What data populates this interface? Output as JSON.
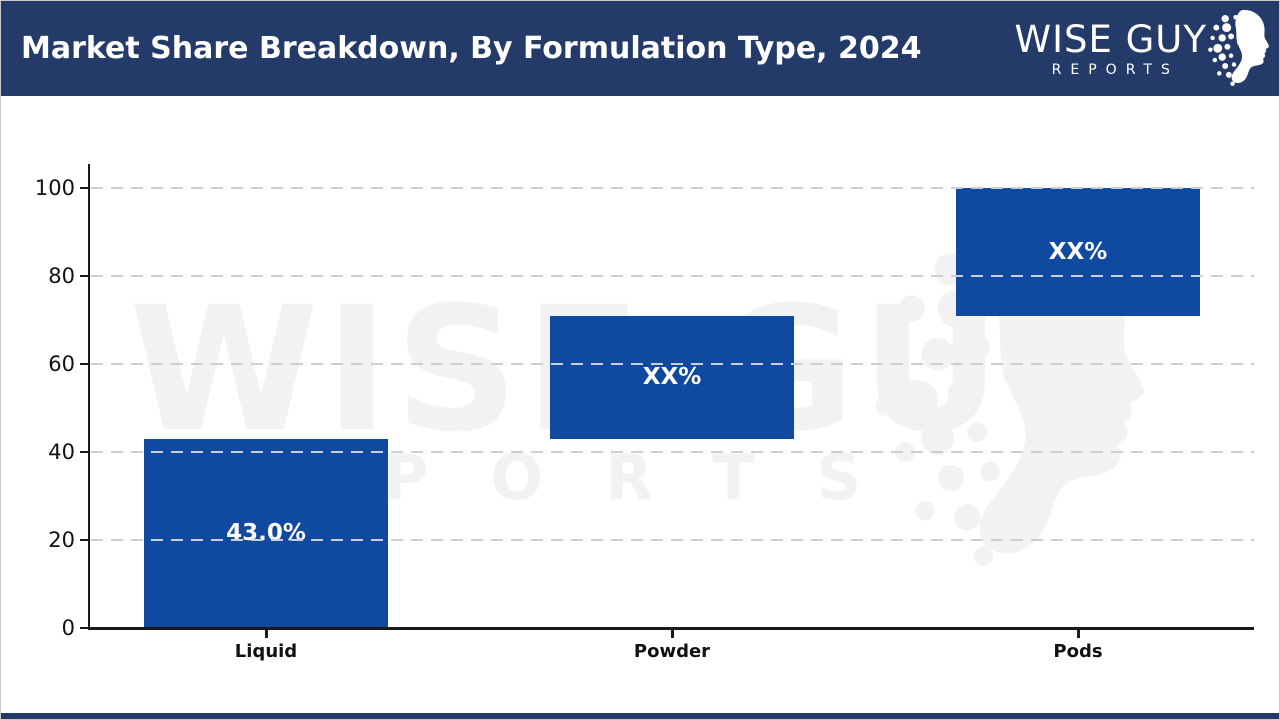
{
  "header": {
    "title": "Market Share Breakdown, By Formulation Type, 2024",
    "logo": {
      "line1": "WISE GUY",
      "line2": "REPORTS"
    }
  },
  "watermark": {
    "line1": "WISE GUY",
    "line2": "REPORTS"
  },
  "colors": {
    "header_bg": "#243b69",
    "footer_bg": "#243b69",
    "bar": "#0f4aa0",
    "bar_label": "#ffffff",
    "grid": "#cbcfd4",
    "axis": "#1a1a1a",
    "watermark": "#f2f2f2",
    "title_text": "#ffffff"
  },
  "chart_data": {
    "type": "bar",
    "subtype": "stacked-waterfall",
    "title": "Market Share Breakdown, By Formulation Type, 2024",
    "categories": [
      "Liquid",
      "Powder",
      "Pods"
    ],
    "segments": [
      {
        "category": "Liquid",
        "start": 0,
        "end": 43,
        "label": "43.0%"
      },
      {
        "category": "Powder",
        "start": 43,
        "end": 71,
        "label": "XX%"
      },
      {
        "category": "Pods",
        "start": 71,
        "end": 100,
        "label": "XX%"
      }
    ],
    "xlabel": "",
    "ylabel": "",
    "ylim": [
      0,
      100
    ],
    "yticks": [
      0,
      20,
      40,
      60,
      80,
      100
    ],
    "grid": "horizontal-dashed",
    "legend": "none"
  }
}
